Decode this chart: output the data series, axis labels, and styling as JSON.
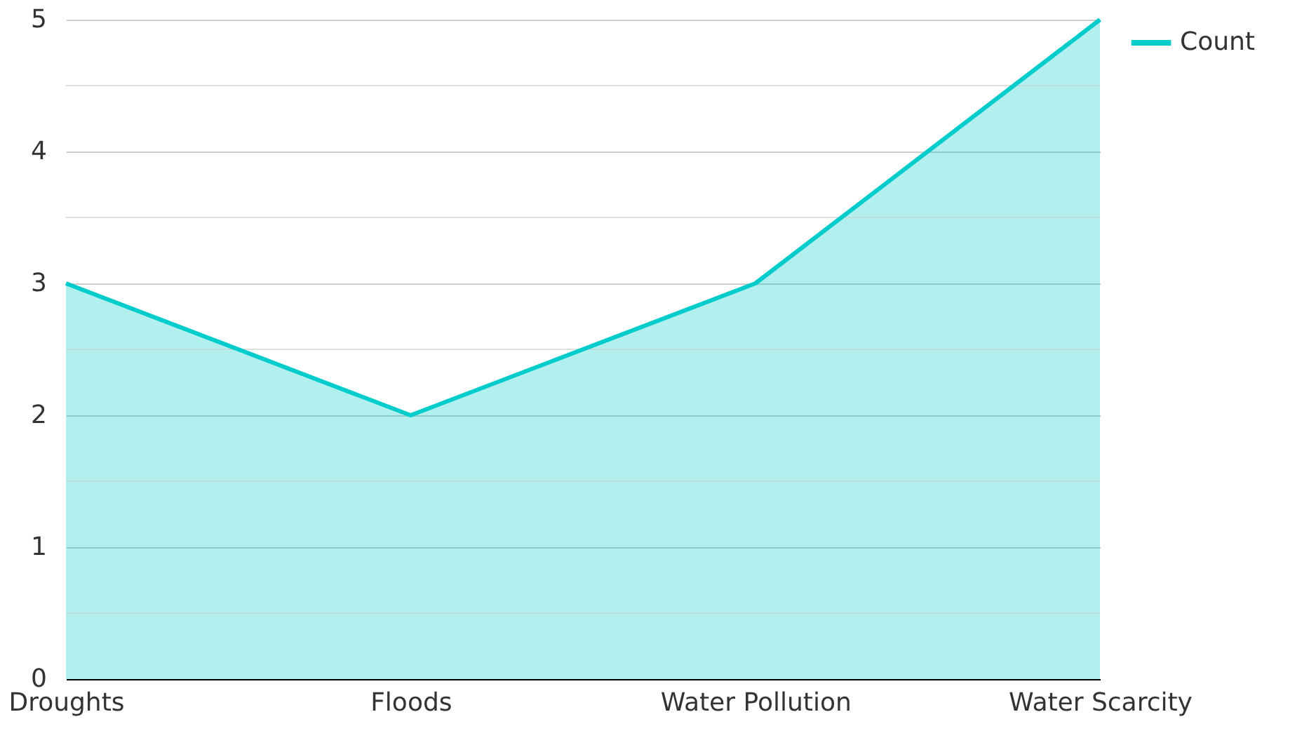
{
  "chart_data": {
    "type": "area",
    "categories": [
      "Droughts",
      "Floods",
      "Water Pollution",
      "Water Scarcity"
    ],
    "series": [
      {
        "name": "Count",
        "color": "#00cccc",
        "values": [
          3,
          2,
          3,
          5
        ]
      }
    ],
    "ylim": [
      0,
      5
    ],
    "yticks": [
      0,
      {
        "value": 0.5,
        "label": null
      },
      1,
      {
        "value": 1.5,
        "label": null
      },
      2,
      {
        "value": 2.5,
        "label": null
      },
      3,
      {
        "value": 3.5,
        "label": null
      },
      4,
      {
        "value": 4.5,
        "label": null
      },
      5
    ],
    "grid": "y",
    "legend": "top right"
  }
}
